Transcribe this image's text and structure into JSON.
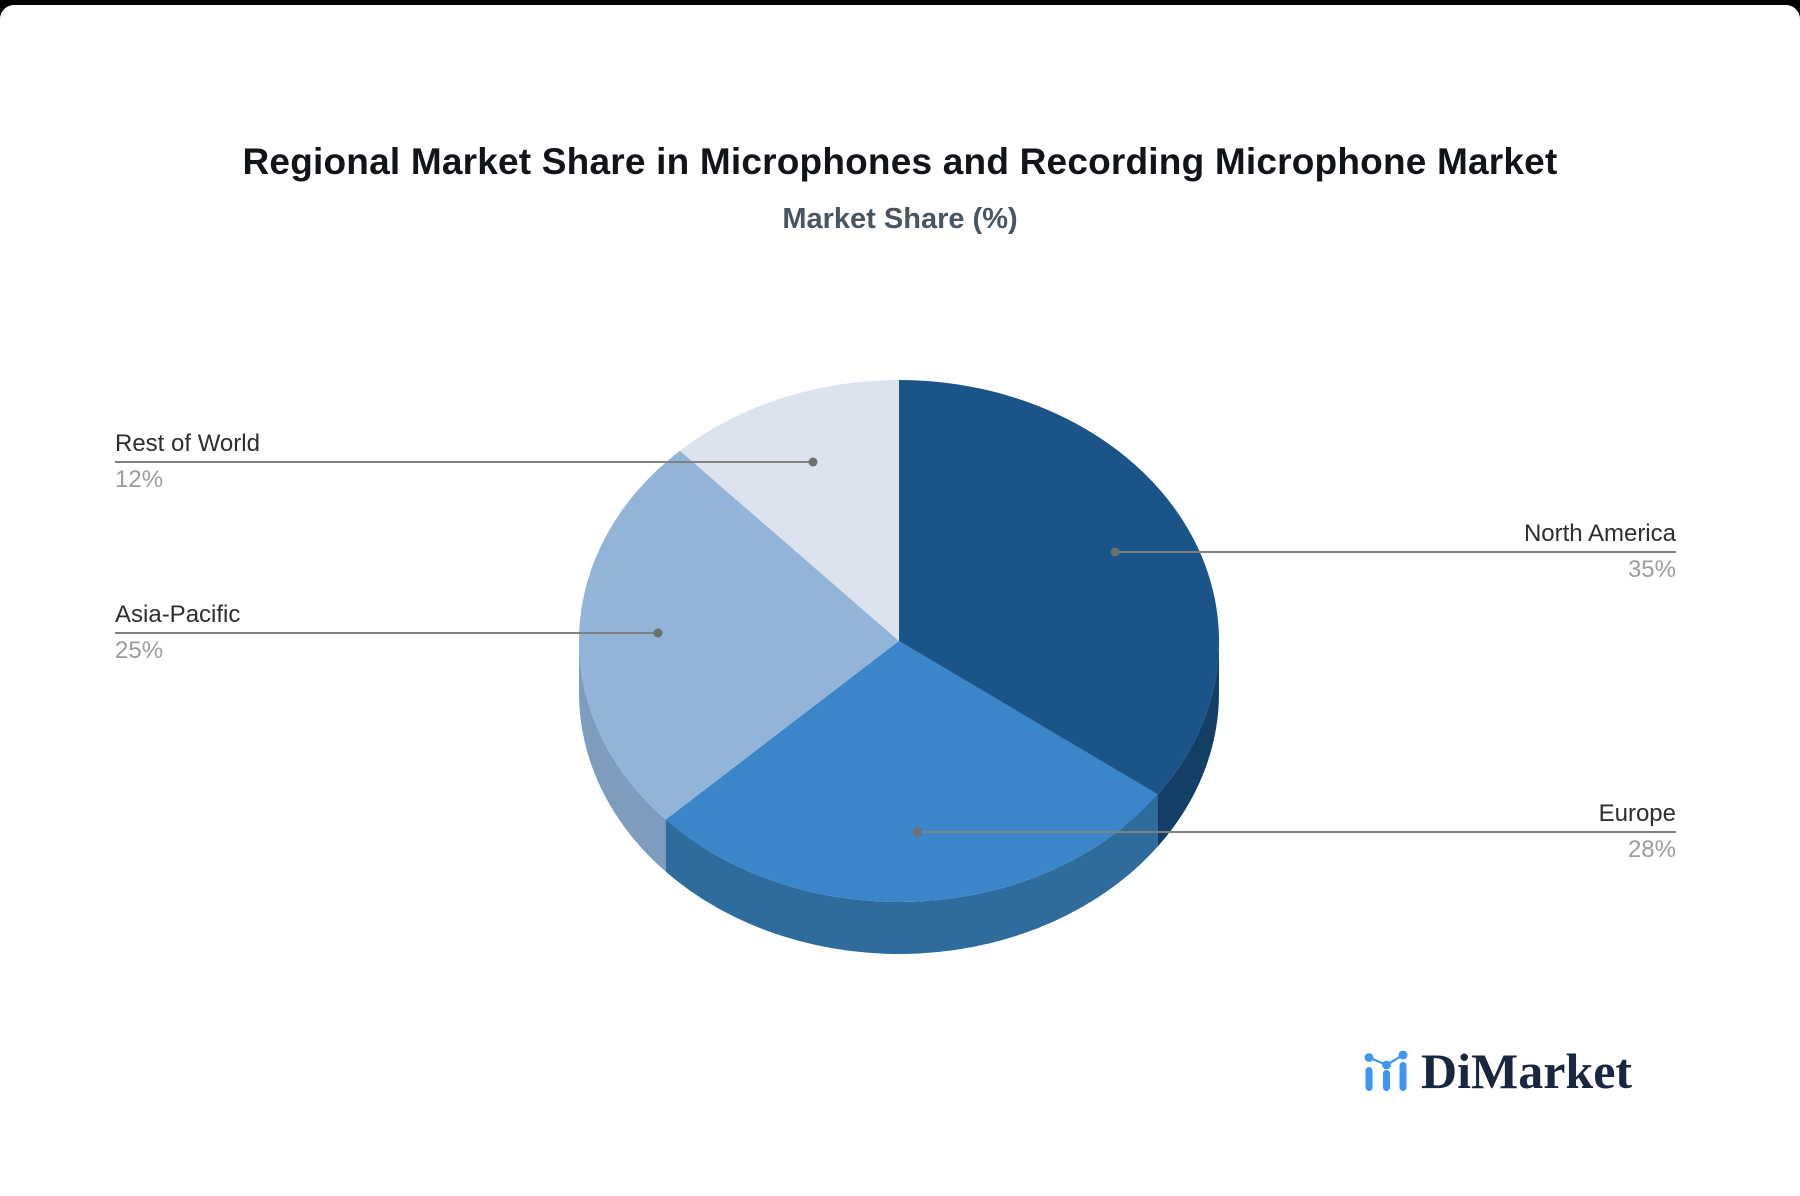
{
  "header": {
    "title": "Regional Market Share in Microphones and Recording Microphone Market",
    "subtitle": "Market Share (%)"
  },
  "chart_data": {
    "type": "pie",
    "style": "3d",
    "title": "Regional Market Share in Microphones and Recording Microphone Market",
    "subtitle": "Market Share (%)",
    "unit": "%",
    "start_angle_deg": 0,
    "direction": "clockwise",
    "labels": [
      "North America",
      "Europe",
      "Asia-Pacific",
      "Rest of World"
    ],
    "values": [
      35,
      28,
      25,
      12
    ],
    "display_values": [
      "35%",
      "28%",
      "25%",
      "12%"
    ],
    "colors": [
      "#1A5488",
      "#3A86C8",
      "#92B4D8",
      "#DCE3EE"
    ],
    "colors_3d": [
      "#133E66",
      "#2F6C9E",
      "#7E9CBE",
      "#B8C4D6"
    ],
    "legend": "none",
    "data_label_style": "callout lines with region name above line and percent below"
  },
  "callouts": {
    "north_america": {
      "label": "North America",
      "value": "35%"
    },
    "europe": {
      "label": "Europe",
      "value": "28%"
    },
    "asia_pacific": {
      "label": "Asia-Pacific",
      "value": "25%"
    },
    "rest_of_world": {
      "label": "Rest of World",
      "value": "12%"
    }
  },
  "logo": {
    "text": "DiMarket",
    "icon": "bar-chart-trend-icon",
    "icon_color": "#3F96F2",
    "text_color": "#19263F"
  },
  "colors": {
    "page_background": "#FFFFFF",
    "top_edge": "#000000",
    "title": "#111418",
    "subtitle": "#4A5560",
    "callout_label": "#2E2E2E",
    "callout_pct": "#9C9C9C",
    "connector_line": "#808080",
    "connector_dot": "#6E6E6E"
  }
}
